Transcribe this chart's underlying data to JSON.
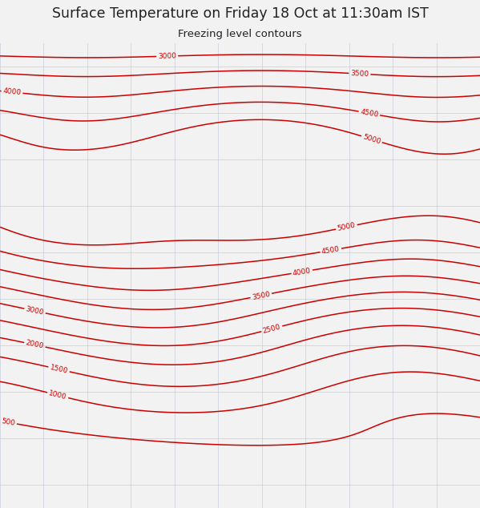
{
  "title": "Surface Temperature on Friday 18 Oct at 11:30am IST",
  "subtitle": "Freezing level contours",
  "title_fontsize": 12.5,
  "subtitle_fontsize": 9.5,
  "title_color": "#222222",
  "ocean_color": "#c8d4ee",
  "header_bg": "#f2f2f2",
  "contour_color": "#cc0000",
  "contour_linewidth": 1.1,
  "contour_label_fontsize": 6.5,
  "fig_width": 5.99,
  "fig_height": 6.34,
  "lon_min": 20,
  "lon_max": 130,
  "lat_min": -65,
  "lat_max": 35,
  "contour_levels": [
    500,
    1000,
    1500,
    2000,
    2500,
    3000,
    3500,
    4000,
    4500,
    5000
  ],
  "grid_color": "#b0bccc",
  "grid_linewidth": 0.4,
  "border_color": "#333333",
  "border_linewidth": 0.4
}
